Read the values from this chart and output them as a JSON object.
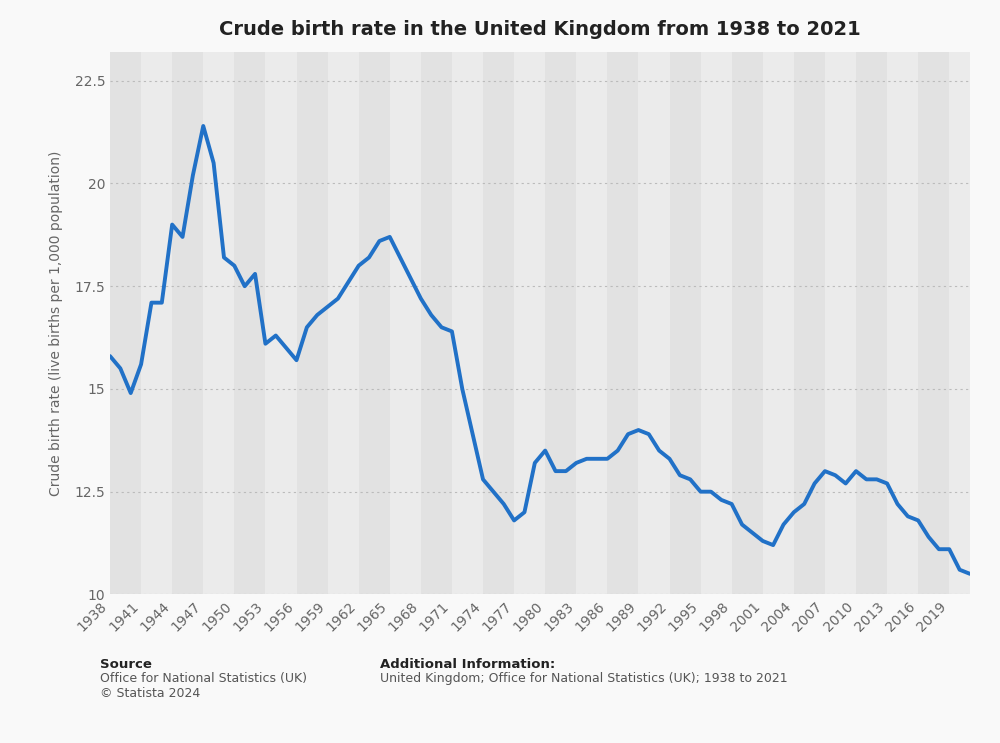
{
  "title": "Crude birth rate in the United Kingdom from 1938 to 2021",
  "ylabel": "Crude birth rate (live births per 1,000 population)",
  "line_color": "#2171c7",
  "line_width": 2.8,
  "background_color": "#f9f9f9",
  "plot_bg_color": "#f0f0f0",
  "stripe_dark": "#e2e2e2",
  "stripe_light": "#ebebeb",
  "ylim": [
    10,
    23.2
  ],
  "yticks": [
    10,
    12.5,
    15,
    17.5,
    20,
    22.5
  ],
  "source_label": "Source",
  "source_body": "Office for National Statistics (UK)\n© Statista 2024",
  "additional_label": "Additional Information:",
  "additional_body": "United Kingdom; Office for National Statistics (UK); 1938 to 2021",
  "tick_years": [
    1938,
    1941,
    1944,
    1947,
    1950,
    1953,
    1956,
    1959,
    1962,
    1965,
    1968,
    1971,
    1974,
    1977,
    1980,
    1983,
    1986,
    1989,
    1992,
    1995,
    1998,
    2001,
    2004,
    2007,
    2010,
    2013,
    2016,
    2019
  ],
  "years": [
    1938,
    1939,
    1940,
    1941,
    1942,
    1943,
    1944,
    1945,
    1946,
    1947,
    1948,
    1949,
    1950,
    1951,
    1952,
    1953,
    1954,
    1955,
    1956,
    1957,
    1958,
    1959,
    1960,
    1961,
    1962,
    1963,
    1964,
    1965,
    1966,
    1967,
    1968,
    1969,
    1970,
    1971,
    1972,
    1973,
    1974,
    1975,
    1976,
    1977,
    1978,
    1979,
    1980,
    1981,
    1982,
    1983,
    1984,
    1985,
    1986,
    1987,
    1988,
    1989,
    1990,
    1991,
    1992,
    1993,
    1994,
    1995,
    1996,
    1997,
    1998,
    1999,
    2000,
    2001,
    2002,
    2003,
    2004,
    2005,
    2006,
    2007,
    2008,
    2009,
    2010,
    2011,
    2012,
    2013,
    2014,
    2015,
    2016,
    2017,
    2018,
    2019,
    2020,
    2021
  ],
  "values": [
    15.8,
    15.5,
    14.9,
    15.6,
    17.1,
    17.1,
    19.0,
    18.7,
    20.2,
    21.4,
    20.5,
    18.2,
    18.0,
    17.5,
    17.8,
    16.1,
    16.3,
    16.0,
    15.7,
    16.5,
    16.8,
    17.0,
    17.2,
    17.6,
    18.0,
    18.2,
    18.6,
    18.7,
    18.2,
    17.7,
    17.2,
    16.8,
    16.5,
    16.4,
    15.0,
    13.9,
    12.8,
    12.5,
    12.2,
    11.8,
    12.0,
    13.2,
    13.5,
    13.0,
    13.0,
    13.2,
    13.3,
    13.3,
    13.3,
    13.5,
    13.9,
    14.0,
    13.9,
    13.5,
    13.3,
    12.9,
    12.8,
    12.5,
    12.5,
    12.3,
    12.2,
    11.7,
    11.5,
    11.3,
    11.2,
    11.7,
    12.0,
    12.2,
    12.7,
    13.0,
    12.9,
    12.7,
    13.0,
    12.8,
    12.8,
    12.7,
    12.2,
    11.9,
    11.8,
    11.4,
    11.1,
    11.1,
    10.6,
    10.5
  ]
}
